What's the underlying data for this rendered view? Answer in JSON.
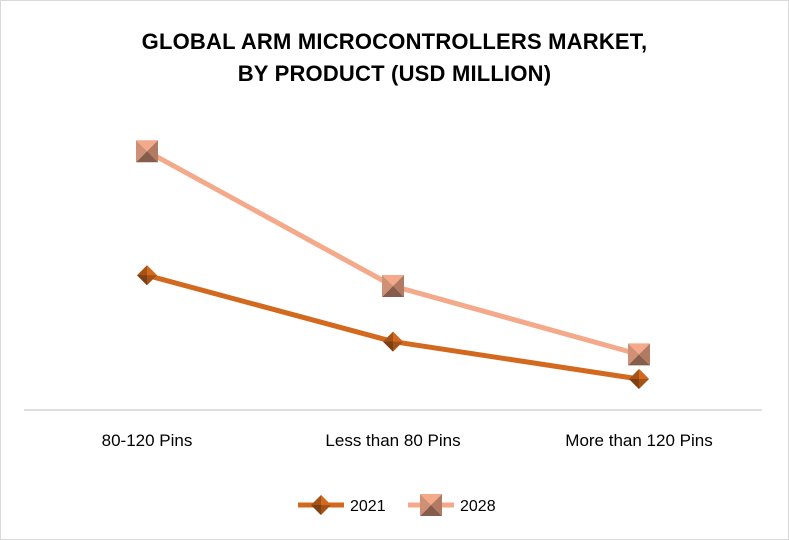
{
  "chart_data": {
    "type": "line",
    "title_line1": "GLOBAL ARM MICROCONTROLLERS MARKET,",
    "title_line2": "BY PRODUCT (USD MILLION)",
    "categories": [
      "80-120 Pins",
      "Less than 80 Pins",
      "More than 120 Pins"
    ],
    "series": [
      {
        "name": "2021",
        "values": [
          1260,
          640,
          290
        ],
        "color": "#d2691e",
        "marker": "diamond"
      },
      {
        "name": "2028",
        "values": [
          2420,
          1160,
          520
        ],
        "color": "#f4a98a",
        "marker": "square"
      }
    ],
    "ylim": [
      0,
      2900
    ],
    "grid": false,
    "legend": "bottom"
  }
}
